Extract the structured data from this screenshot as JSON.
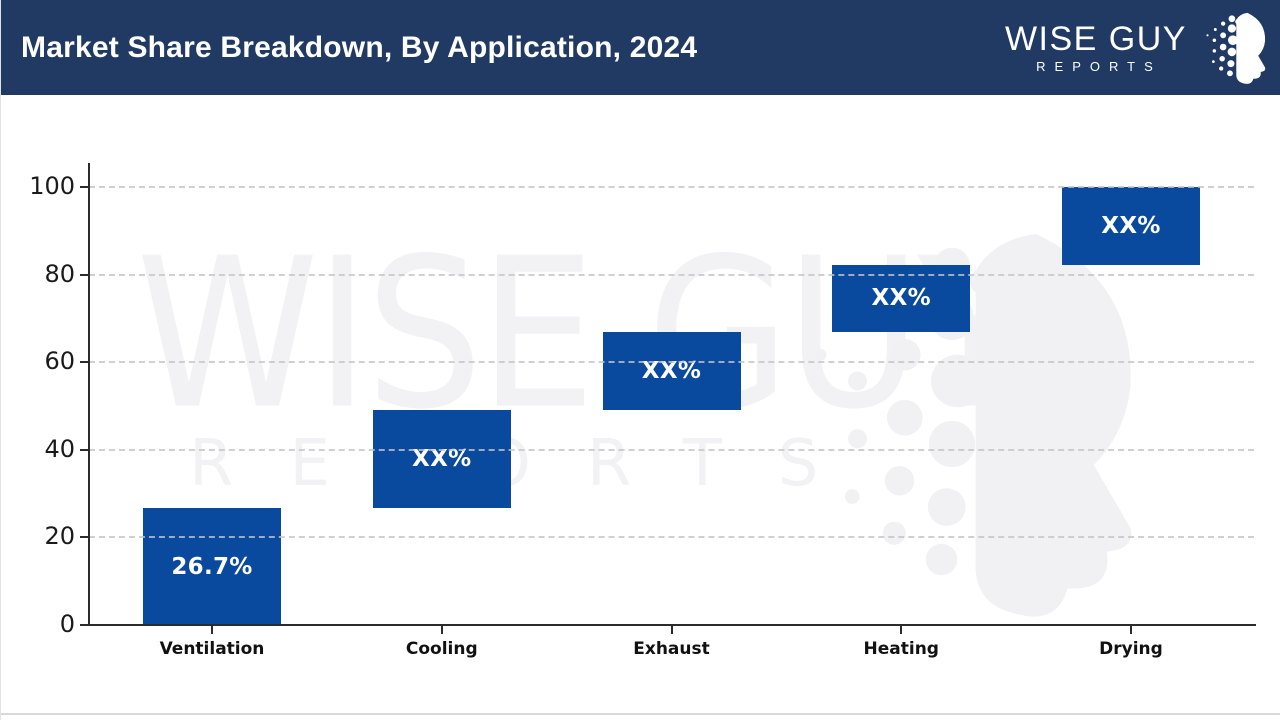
{
  "header": {
    "title": "Market Share Breakdown, By Application, 2024",
    "background_color": "#203a64",
    "logo": {
      "line1": "WISE GUY",
      "line2": "REPORTS"
    }
  },
  "watermark": {
    "line1": "WISE GUY",
    "line2": "REPORTS"
  },
  "chart_data": {
    "type": "bar",
    "subtype": "waterfall",
    "title": "Market Share Breakdown, By Application, 2024",
    "categories": [
      "Ventilation",
      "Cooling",
      "Exhaust",
      "Heating",
      "Drying"
    ],
    "segments": [
      {
        "category": "Ventilation",
        "start": 0,
        "end": 26.7,
        "label": "26.7%"
      },
      {
        "category": "Cooling",
        "start": 26.7,
        "end": 49.1,
        "label": "XX%"
      },
      {
        "category": "Exhaust",
        "start": 49.1,
        "end": 66.9,
        "label": "XX%"
      },
      {
        "category": "Heating",
        "start": 66.9,
        "end": 82.2,
        "label": "XX%"
      },
      {
        "category": "Drying",
        "start": 82.2,
        "end": 100,
        "label": "XX%"
      }
    ],
    "yticks": [
      0,
      20,
      40,
      60,
      80,
      100
    ],
    "ylim": [
      0,
      105
    ],
    "xlabel": "",
    "ylabel": "",
    "bar_color": "#0a4a9e",
    "bar_label_color": "#ffffff",
    "grid": "horizontal dashed",
    "legend": "none"
  }
}
